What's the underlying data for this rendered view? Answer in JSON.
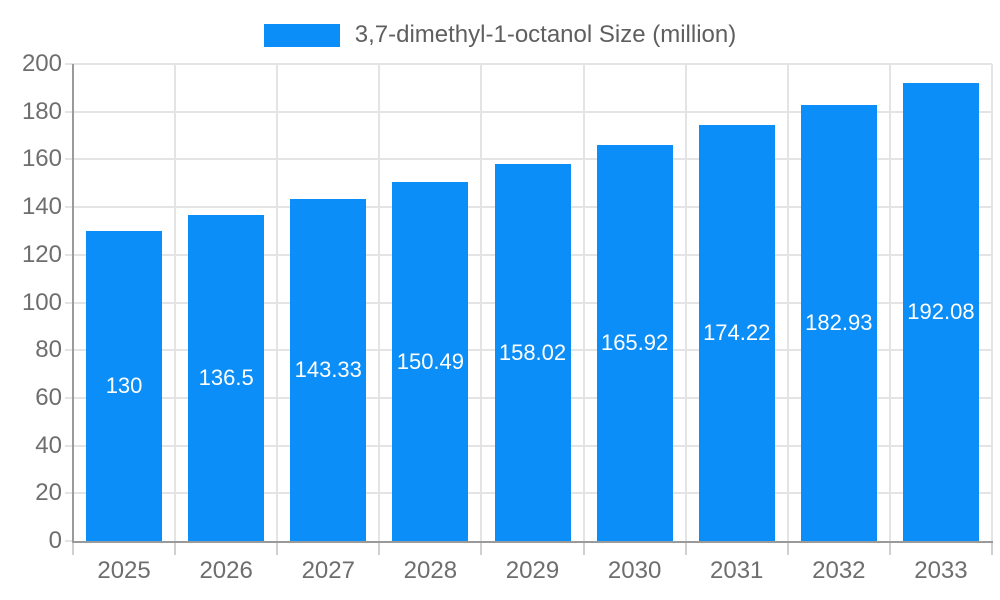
{
  "chart_data": {
    "type": "bar",
    "legend": "3,7-dimethyl-1-octanol Size (million)",
    "categories": [
      "2025",
      "2026",
      "2027",
      "2028",
      "2029",
      "2030",
      "2031",
      "2032",
      "2033"
    ],
    "values": [
      130,
      136.5,
      143.33,
      150.49,
      158.02,
      165.92,
      174.22,
      182.93,
      192.08
    ],
    "value_labels": [
      "130",
      "136.5",
      "143.33",
      "150.49",
      "158.02",
      "165.92",
      "174.22",
      "182.93",
      "192.08"
    ],
    "ylim": [
      0,
      200
    ],
    "ytick_step": 20,
    "ytick_labels": [
      "0",
      "20",
      "40",
      "60",
      "80",
      "100",
      "120",
      "140",
      "160",
      "180",
      "200"
    ],
    "grid": true,
    "legend_position": "top-center",
    "value_label_position": "inside-center",
    "colors": {
      "bar": "#0b8ef8",
      "grid": "#e4e4e4",
      "axis_line": "#9a9a9a",
      "axis_text": "#6e6e6e",
      "legend_text": "#5f5f5f",
      "bar_label_text": "#ffffff",
      "background": "#ffffff"
    }
  }
}
